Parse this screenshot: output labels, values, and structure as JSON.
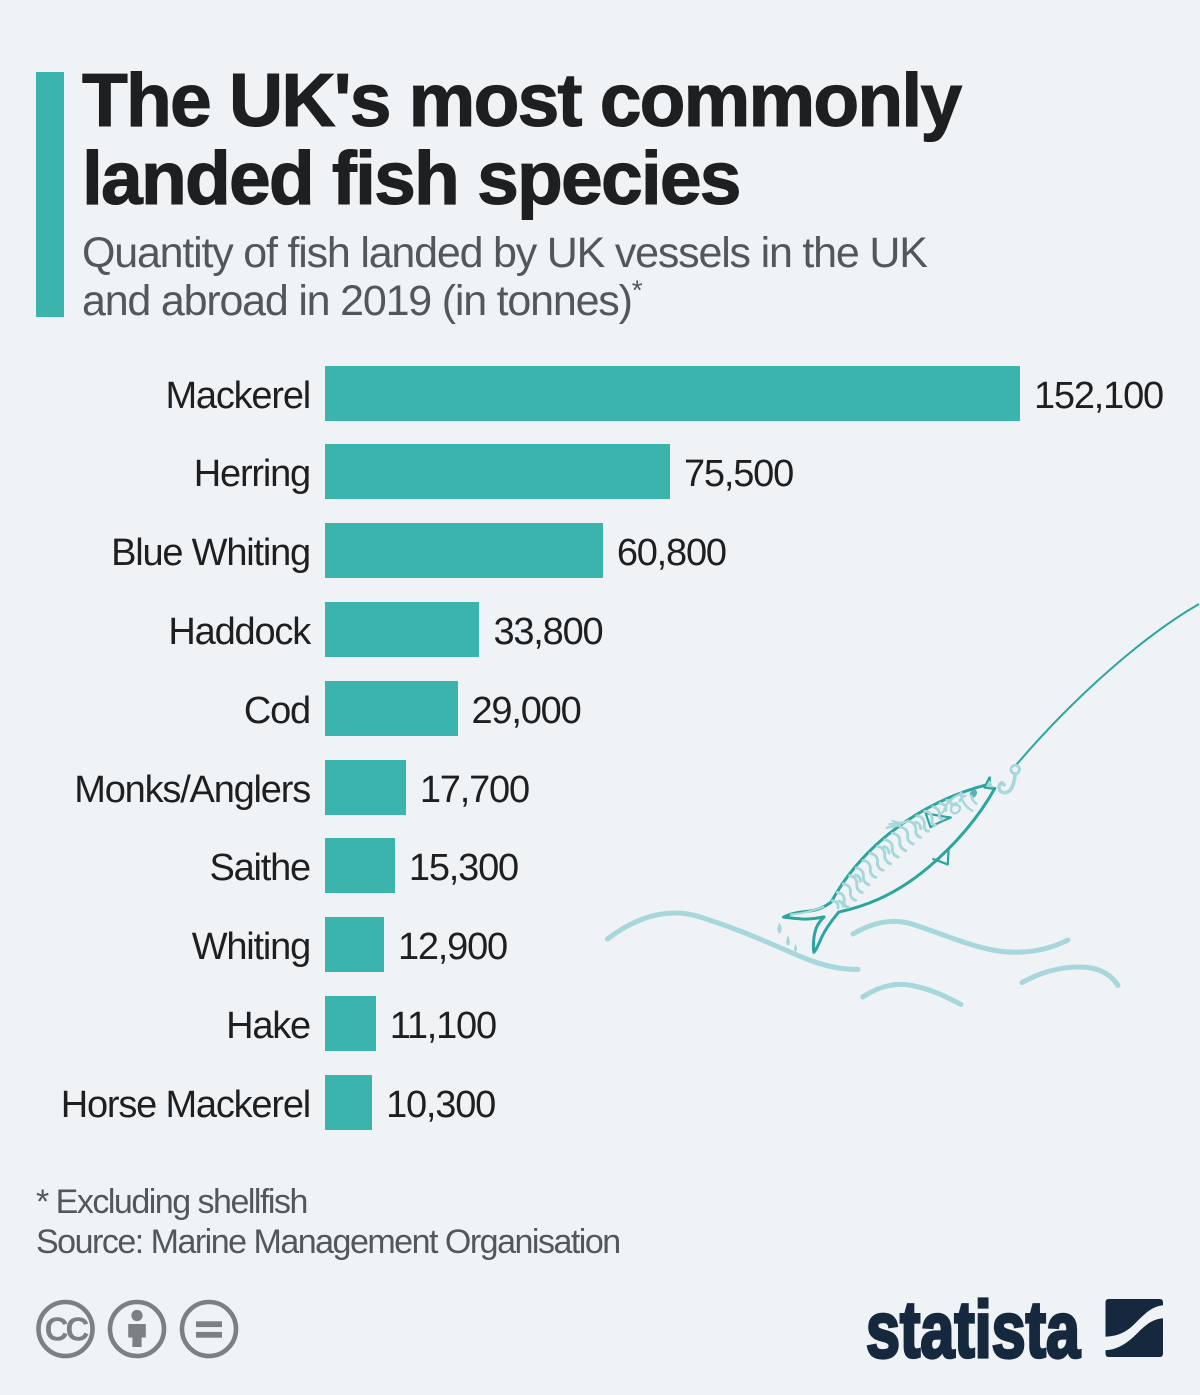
{
  "page": {
    "background": "#eff3f6",
    "accent_color": "#3ab4ad"
  },
  "header": {
    "title_line1": "The UK's most commonly",
    "title_line2": "landed fish species",
    "subtitle_line1": "Quantity of fish landed by UK vessels in the UK",
    "subtitle_line2": "and abroad in 2019 (in tonnes)",
    "subtitle_footnote_marker": "*"
  },
  "chart_data": {
    "type": "bar",
    "orientation": "horizontal",
    "title": "The UK's most commonly landed fish species",
    "subtitle": "Quantity of fish landed by UK vessels in the UK and abroad in 2019 (in tonnes)*",
    "unit": "tonnes",
    "categories": [
      "Mackerel",
      "Herring",
      "Blue Whiting",
      "Haddock",
      "Cod",
      "Monks/Anglers",
      "Saithe",
      "Whiting",
      "Hake",
      "Horse Mackerel"
    ],
    "values": [
      152100,
      75500,
      60800,
      33800,
      29000,
      17700,
      15300,
      12900,
      11100,
      10300
    ],
    "value_labels": [
      "152,100",
      "75,500",
      "60,800",
      "33,800",
      "29,000",
      "17,700",
      "15,300",
      "12,900",
      "11,100",
      "10,300"
    ],
    "xlim": [
      0,
      152100
    ],
    "bar_color": "#3ab4ad",
    "grid": false,
    "legend": false
  },
  "footer": {
    "footnote": "* Excluding shellfish",
    "source": "Source: Marine Management Organisation",
    "license_icons": [
      "cc-icon",
      "attribution-person-icon",
      "no-derivatives-equals-icon"
    ],
    "cc_label": "CC",
    "icon_color": "#7c8084",
    "brand": "statista",
    "brand_color": "#16283e"
  },
  "illustration": {
    "name": "mackerel caught on fishing hook jumping out of water",
    "outline_color": "#2ba59e",
    "light_color": "#a7d7da"
  }
}
